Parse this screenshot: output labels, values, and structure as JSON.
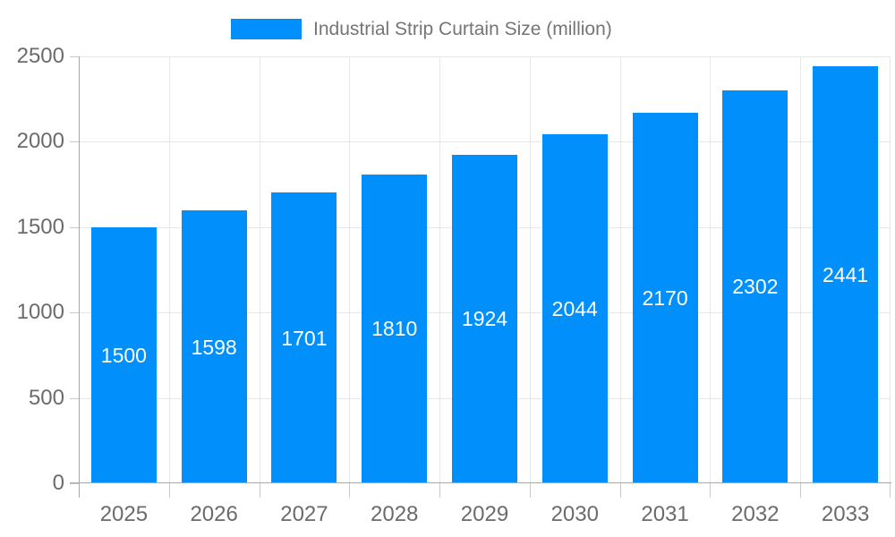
{
  "legend": {
    "items": [
      {
        "label": "Industrial Strip Curtain Size (million)",
        "color": "#008FFB"
      }
    ]
  },
  "chart_data": {
    "type": "bar",
    "title": "",
    "categories": [
      "2025",
      "2026",
      "2027",
      "2028",
      "2029",
      "2030",
      "2031",
      "2032",
      "2033"
    ],
    "series": [
      {
        "name": "Industrial Strip Curtain Size (million)",
        "values": [
          1500,
          1598,
          1701,
          1810,
          1924,
          2044,
          2170,
          2302,
          2441
        ]
      }
    ],
    "value_labels_shown": true,
    "xlabel": "",
    "ylabel": "",
    "ylim": [
      0,
      2500
    ],
    "yticks": [
      0,
      500,
      1000,
      1500,
      2000,
      2500
    ],
    "grid": true,
    "legend_position": "top",
    "colors": {
      "bar": "#008FFB",
      "value_label": "#FFFFFF",
      "gridline": "#E6E6E6",
      "axis_line": "#A8A8A8",
      "tick_mark": "#C9C9C9",
      "axis_label": "#6B6B6B",
      "legend_text": "#757575",
      "background": "#FFFFFF"
    }
  }
}
